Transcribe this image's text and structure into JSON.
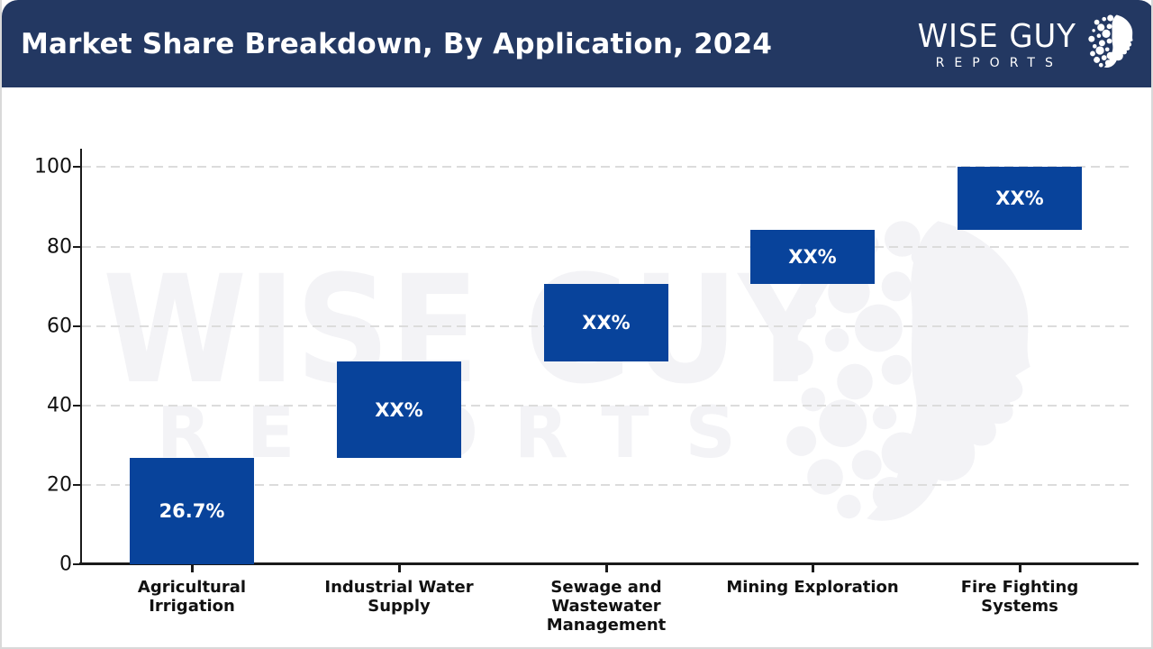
{
  "header": {
    "title": "Market Share Breakdown, By Application, 2024",
    "logo": {
      "brand": "WISE GUY",
      "sub": "REPORTS"
    }
  },
  "watermark": {
    "line1": "WISE GUY",
    "line2": "REPORTS"
  },
  "chart_data": {
    "type": "bar",
    "subtype": "waterfall",
    "title": "Market Share Breakdown, By Application, 2024",
    "categories": [
      "Agricultural Irrigation",
      "Industrial Water Supply",
      "Sewage and Wastewater Management",
      "Mining Exploration",
      "Fire Fighting Systems"
    ],
    "category_label_lines": [
      [
        "Agricultural",
        "Irrigation"
      ],
      [
        "Industrial Water",
        "Supply"
      ],
      [
        "Sewage and",
        "Wastewater",
        "Management"
      ],
      [
        "Mining Exploration"
      ],
      [
        "Fire Fighting",
        "Systems"
      ]
    ],
    "segments": [
      {
        "category": "Agricultural Irrigation",
        "start": 0,
        "end": 26.7,
        "label": "26.7%"
      },
      {
        "category": "Industrial Water Supply",
        "start": 26.7,
        "end": 51.0,
        "label": "XX%"
      },
      {
        "category": "Sewage and Wastewater Management",
        "start": 51.0,
        "end": 70.5,
        "label": "XX%"
      },
      {
        "category": "Mining Exploration",
        "start": 70.5,
        "end": 84.2,
        "label": "XX%"
      },
      {
        "category": "Fire Fighting Systems",
        "start": 84.2,
        "end": 100.0,
        "label": "XX%"
      }
    ],
    "ylim": [
      0,
      100
    ],
    "yticks": [
      0,
      20,
      40,
      60,
      80,
      100
    ],
    "grid": "horizontal-dashed",
    "legend": "none",
    "bar_color": "#08439b",
    "bar_label_color": "#ffffff"
  },
  "colors": {
    "header_bg": "#233862",
    "bar": "#08439b",
    "axis": "#1a1a1a",
    "grid": "#dcdcdc",
    "watermark": "#f3f3f6"
  }
}
